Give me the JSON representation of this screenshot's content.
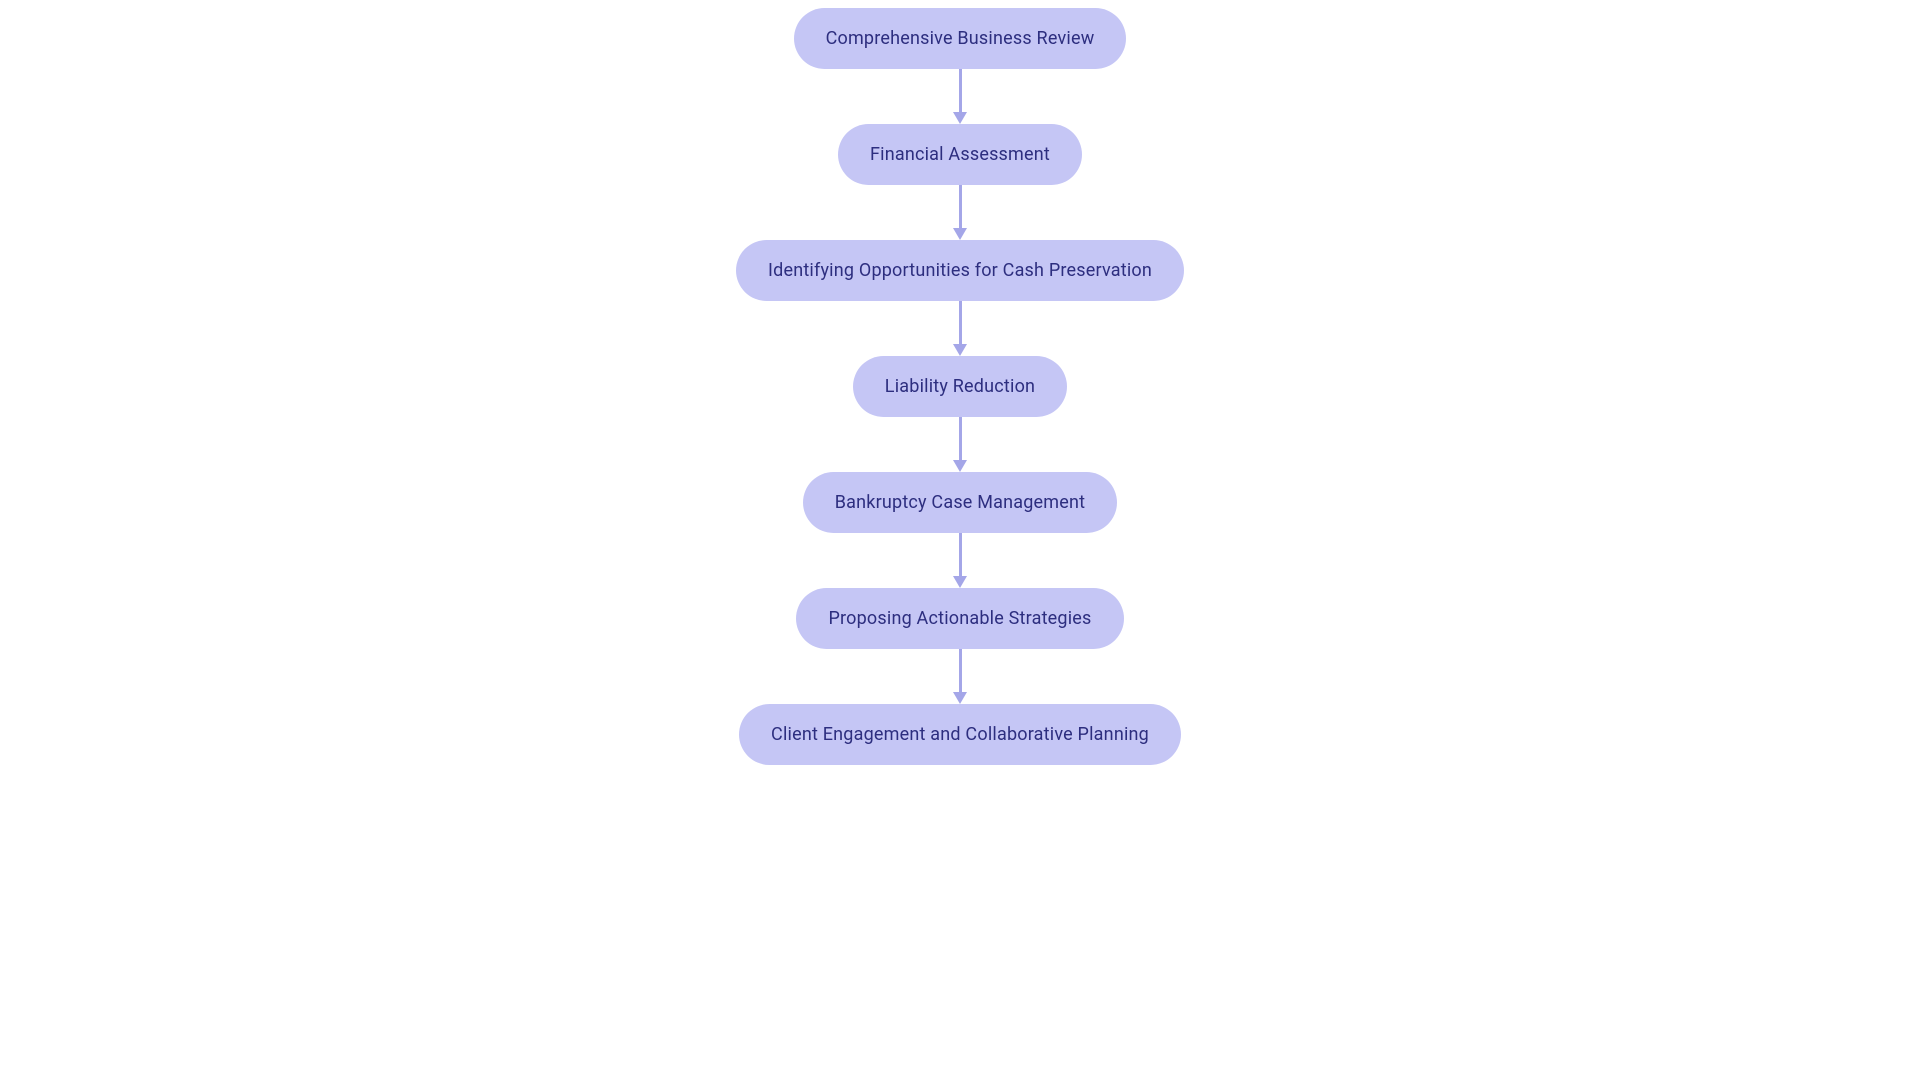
{
  "flowchart": {
    "type": "flowchart",
    "orientation": "vertical",
    "background_color": "#ffffff",
    "node_fill_color": "#c5c6f5",
    "node_text_color": "#2d2e7f",
    "node_font_size": 18,
    "node_border_radius": 999,
    "node_padding_x": 32,
    "node_padding_y": 20,
    "arrow_color": "#a4a6e8",
    "arrow_line_width": 3,
    "arrow_head_size": 12,
    "arrow_gap_height": 55,
    "nodes": [
      {
        "id": "n1",
        "label": "Comprehensive Business Review"
      },
      {
        "id": "n2",
        "label": "Financial Assessment"
      },
      {
        "id": "n3",
        "label": "Identifying Opportunities for Cash Preservation"
      },
      {
        "id": "n4",
        "label": "Liability Reduction"
      },
      {
        "id": "n5",
        "label": "Bankruptcy Case Management"
      },
      {
        "id": "n6",
        "label": "Proposing Actionable Strategies"
      },
      {
        "id": "n7",
        "label": "Client Engagement and Collaborative Planning"
      }
    ],
    "edges": [
      {
        "from": "n1",
        "to": "n2"
      },
      {
        "from": "n2",
        "to": "n3"
      },
      {
        "from": "n3",
        "to": "n4"
      },
      {
        "from": "n4",
        "to": "n5"
      },
      {
        "from": "n5",
        "to": "n6"
      },
      {
        "from": "n6",
        "to": "n7"
      }
    ]
  }
}
